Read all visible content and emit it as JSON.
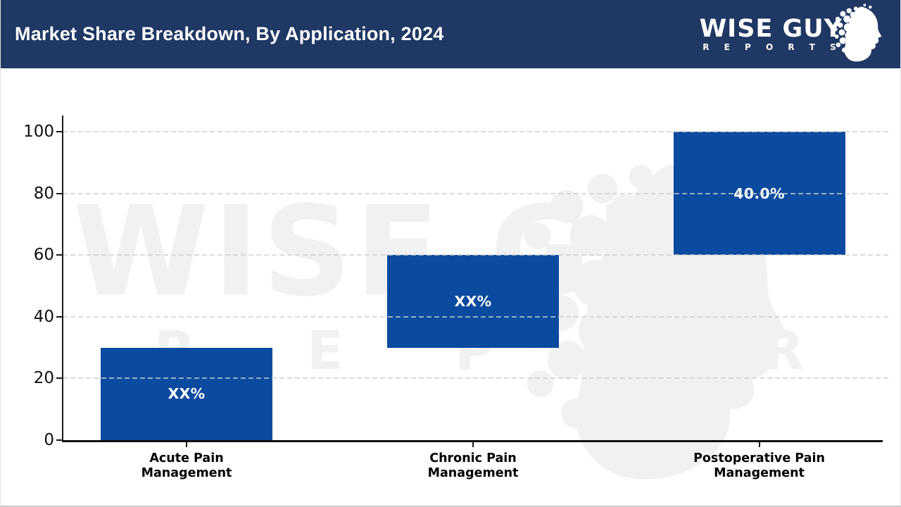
{
  "header": {
    "title": "Market Share Breakdown, By Application, 2024",
    "bg_color": "#1f3864",
    "logo": {
      "line1": "WISE GUY",
      "line2": "R E P O R T S"
    }
  },
  "watermark": {
    "line1": "WISE GUY",
    "line2": "R E P O R T S"
  },
  "chart_data": {
    "type": "bar",
    "variant": "floating-segment (waterfall-style market share bars)",
    "title": "Market Share Breakdown, By Application, 2024",
    "categories": [
      "Acute Pain Management",
      "Chronic Pain Management",
      "Postoperative Pain Management"
    ],
    "category_label_lines": [
      [
        "Acute Pain",
        "Management"
      ],
      [
        "Chronic Pain",
        "Management"
      ],
      [
        "Postoperative Pain",
        "Management"
      ]
    ],
    "segments": [
      {
        "category": "Acute Pain Management",
        "start": 0,
        "end": 30,
        "label": "XX%"
      },
      {
        "category": "Chronic Pain Management",
        "start": 30,
        "end": 60,
        "label": "XX%"
      },
      {
        "category": "Postoperative Pain Management",
        "start": 60,
        "end": 100,
        "label": "40.0%"
      }
    ],
    "ylim": [
      0,
      100
    ],
    "yticks": [
      0,
      20,
      40,
      60,
      80,
      100
    ],
    "xlabel": "",
    "ylabel": "",
    "bar_color": "#0a4a9f",
    "value_label_color": "#ffffff",
    "grid": "horizontal dashed gridlines drawn above bars",
    "legend": "none"
  }
}
